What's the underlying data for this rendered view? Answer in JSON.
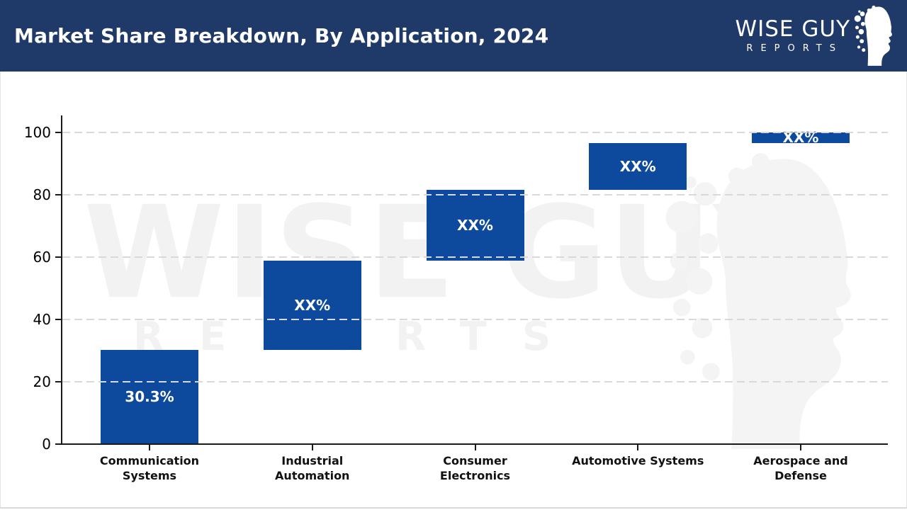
{
  "header": {
    "title": "Market Share Breakdown, By Application, 2024",
    "background_color": "#1f3a68",
    "logo": {
      "line1": "WISE GUY",
      "line2": "REPORTS"
    }
  },
  "watermark": {
    "line1": "WISE GUY",
    "line2": "REPORTS"
  },
  "chart_data": {
    "type": "bar",
    "subtype": "waterfall",
    "title": "Market Share Breakdown, By Application, 2024",
    "categories": [
      "Communication\nSystems",
      "Industrial\nAutomation",
      "Consumer\nElectronics",
      "Automotive Systems",
      "Aerospace and\nDefense"
    ],
    "segments": [
      {
        "category": "Communication Systems",
        "label": "30.3%",
        "start": 0,
        "end": 30.3
      },
      {
        "category": "Industrial Automation",
        "label": "XX%",
        "start": 30.3,
        "end": 58.9
      },
      {
        "category": "Consumer Electronics",
        "label": "XX%",
        "start": 58.9,
        "end": 81.6
      },
      {
        "category": "Automotive Systems",
        "label": "XX%",
        "start": 81.6,
        "end": 96.6
      },
      {
        "category": "Aerospace and Defense",
        "label": "XX%",
        "start": 96.6,
        "end": 100
      }
    ],
    "xlabel": "",
    "ylabel": "",
    "ylim": [
      0,
      100
    ],
    "yticks": [
      0,
      20,
      40,
      60,
      80,
      100
    ],
    "grid": "horizontal-dashed-over-bars",
    "legend": "none",
    "bar_color": "#0d4a9e",
    "value_label_color": "#ffffff",
    "gridline_color": "#d9d9d9",
    "axis_color": "#1a1a1a"
  }
}
